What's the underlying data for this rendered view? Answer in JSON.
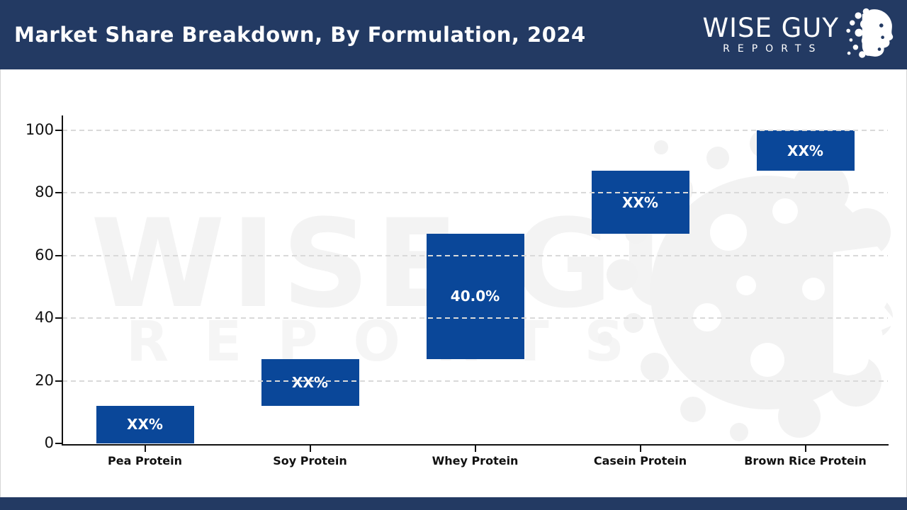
{
  "header": {
    "title": "Market Share Breakdown, By Formulation, 2024",
    "logo": {
      "line1": "WISE GUY",
      "line2": "REPORTS"
    }
  },
  "watermark": {
    "line1": "WISE GUY",
    "line2": "REPORTS"
  },
  "colors": {
    "header_bg": "#233a63",
    "footer_bg": "#233a63",
    "bar": "#0a4799",
    "bar_label": "#ffffff",
    "gridline": "#d9d9d9",
    "axis": "#111111",
    "watermark": "#f3f3f3"
  },
  "chart_data": {
    "type": "bar",
    "variant": "waterfall",
    "title": "Market Share Breakdown, By Formulation, 2024",
    "categories": [
      "Pea Protein",
      "Soy Protein",
      "Whey Protein",
      "Casein Protein",
      "Brown Rice Protein"
    ],
    "segments": [
      [
        0,
        12
      ],
      [
        12,
        27
      ],
      [
        27,
        67
      ],
      [
        67,
        87
      ],
      [
        87,
        100
      ]
    ],
    "values": [
      12,
      15,
      40,
      20,
      13
    ],
    "bar_labels": [
      "XX%",
      "XX%",
      "40.0%",
      "XX%",
      "XX%"
    ],
    "yticks": [
      0,
      20,
      40,
      60,
      80,
      100
    ],
    "ylim": [
      0,
      105
    ],
    "xlabel": "",
    "ylabel": "",
    "grid": "horizontal-dashed-over-bars",
    "legend": "none"
  }
}
